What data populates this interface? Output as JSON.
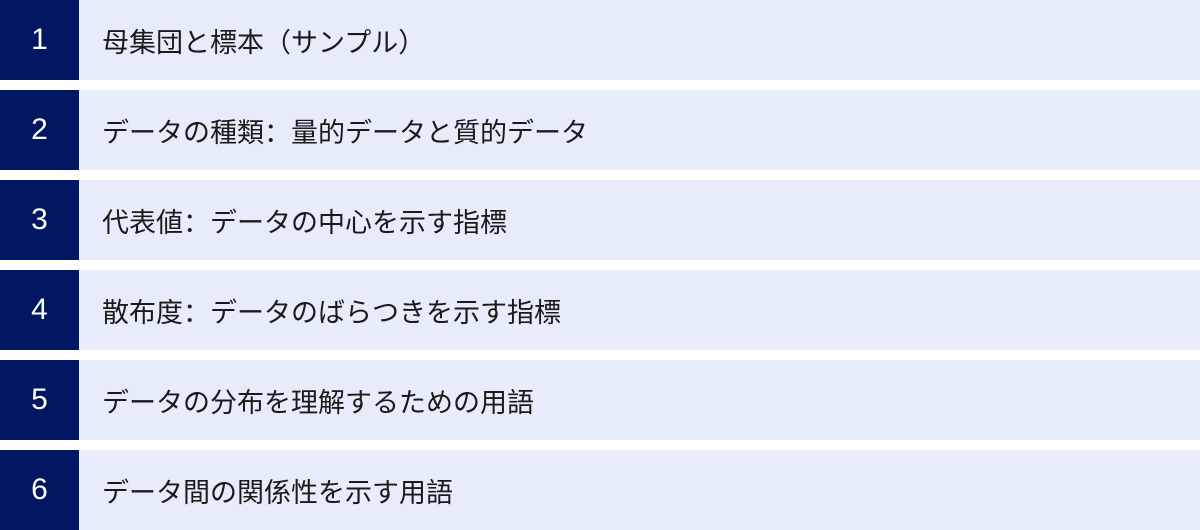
{
  "colors": {
    "number_bg": "#021761",
    "row_bg": "#e6ecf9",
    "number_text": "#ffffff",
    "label_text": "#1a1a1a"
  },
  "items": [
    {
      "number": "1",
      "label": "母集団と標本（サンプル）"
    },
    {
      "number": "2",
      "label": "データの種類：量的データと質的データ"
    },
    {
      "number": "3",
      "label": "代表値：データの中心を示す指標"
    },
    {
      "number": "4",
      "label": "散布度：データのばらつきを示す指標"
    },
    {
      "number": "5",
      "label": "データの分布を理解するための用語"
    },
    {
      "number": "6",
      "label": "データ間の関係性を示す用語"
    }
  ]
}
